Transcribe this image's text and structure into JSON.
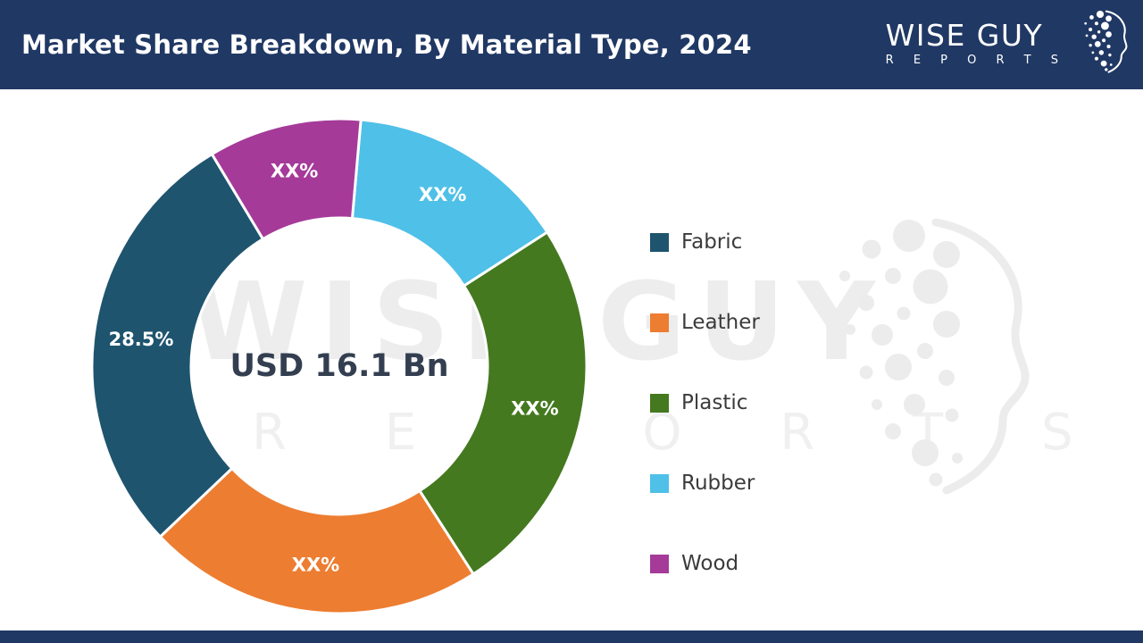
{
  "header": {
    "title": "Market Share Breakdown, By Material Type, 2024",
    "background": "#203864",
    "logo": {
      "line1": "WISE GUY",
      "line2": "R E P O R T S"
    }
  },
  "watermark": {
    "line1": "WISE GUY",
    "line2": "R E P O R T S"
  },
  "chart_data": {
    "type": "pie",
    "subtype": "donut",
    "title": "Market Share Breakdown, By Material Type, 2024",
    "center_label": "USD 16.1 Bn",
    "unit": "%",
    "legend_position": "right",
    "start_angle_deg": 5,
    "clockwise": true,
    "draw_order": [
      "Rubber",
      "Plastic",
      "Leather",
      "Fabric",
      "Wood"
    ],
    "slices": [
      {
        "name": "Fabric",
        "value": 28.5,
        "label": "28.5%",
        "color": "#1e546e"
      },
      {
        "name": "Leather",
        "value": 22.0,
        "label": "XX%",
        "color": "#ed7d31"
      },
      {
        "name": "Plastic",
        "value": 25.0,
        "label": "XX%",
        "color": "#44791f"
      },
      {
        "name": "Rubber",
        "value": 14.5,
        "label": "XX%",
        "color": "#4fc0e8"
      },
      {
        "name": "Wood",
        "value": 10.0,
        "label": "XX%",
        "color": "#a53a99"
      }
    ]
  },
  "footer": {
    "background": "#203864"
  }
}
